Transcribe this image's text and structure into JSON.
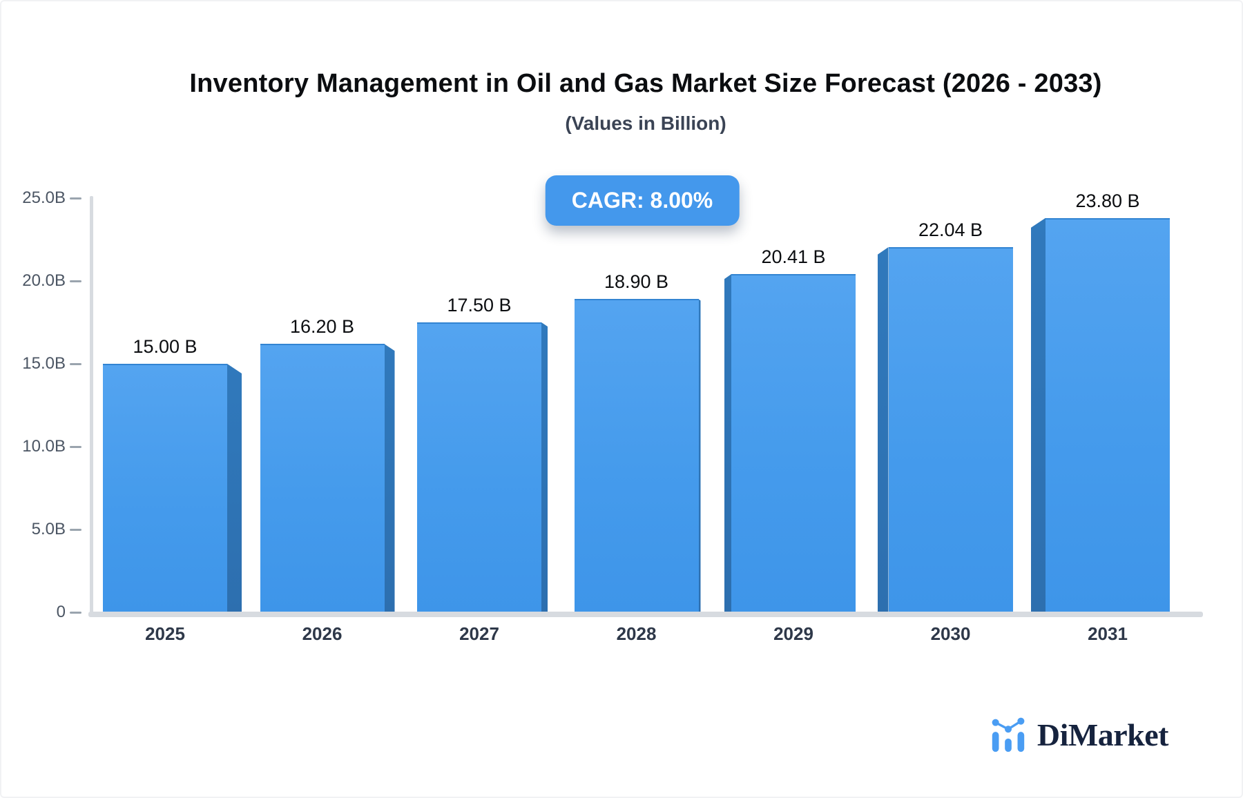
{
  "header": {
    "title": "Inventory Management in Oil and Gas Market Size Forecast (2026 - 2033)",
    "subtitle": "(Values in Billion)"
  },
  "badge": {
    "label": "CAGR: 8.00%"
  },
  "chart_data": {
    "type": "bar",
    "title": "Inventory Management in Oil and Gas Market Size Forecast (2026 - 2033)",
    "subtitle": "(Values in Billion)",
    "cagr_percent": "8.00%",
    "unit": "Billion",
    "categories": [
      "2025",
      "2026",
      "2027",
      "2028",
      "2029",
      "2030",
      "2031"
    ],
    "values": [
      15.0,
      16.2,
      17.5,
      18.9,
      20.41,
      22.04,
      23.8
    ],
    "value_labels": [
      "15.00 B",
      "16.20 B",
      "17.50 B",
      "18.90 B",
      "20.41 B",
      "22.04 B",
      "23.80 B"
    ],
    "ylim": [
      0,
      25
    ],
    "ytick_values": [
      25,
      20,
      15,
      10,
      5,
      0
    ],
    "ytick_labels": [
      "25.0B",
      "20.0B",
      "15.0B",
      "10.0B",
      "5.0B",
      "0"
    ],
    "grid": false,
    "legend": "none",
    "bar_style": "3d-perspective"
  },
  "branding": {
    "logo_text": "DiMarket"
  },
  "colors": {
    "bar_front_top": "#54A4F0",
    "bar_front_mid": "#459BEC",
    "bar_front_bottom": "#3E95E9",
    "bar_side_top": "#3079BC",
    "bar_side_bottom": "#2D6FAF",
    "badge_bg": "#4498EC",
    "axis": "#D7DBE0",
    "title_text": "#0B0D10",
    "subtitle_text": "#3A4354",
    "ytick_text": "#4B5563",
    "xtick_text": "#2E3849",
    "logo_text": "#16233E",
    "logo_icon_blue": "#4A9DF3"
  }
}
